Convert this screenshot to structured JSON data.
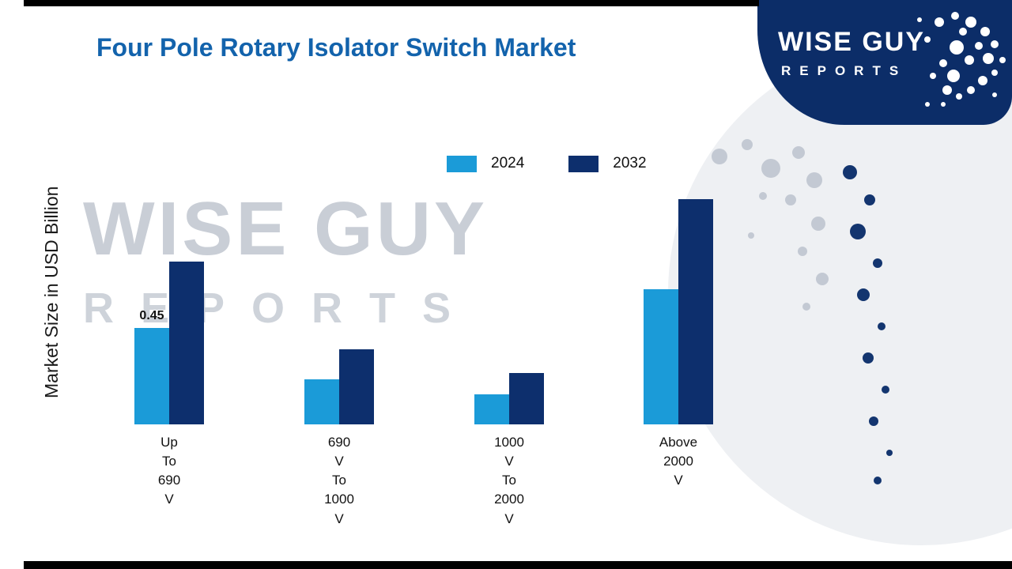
{
  "page": {
    "title": "Four Pole Rotary Isolator Switch Market"
  },
  "logo": {
    "line1": "WISE GUY",
    "line2": "REPORTS"
  },
  "watermark": {
    "line1": "WISE GUY",
    "line2": "REPORTS"
  },
  "colors": {
    "series_2024": "#1b9bd8",
    "series_2032": "#0d2f6d",
    "title_blue": "#1363ac",
    "logo_navy": "#0c2d68",
    "watermark_gray": "#c9ced6"
  },
  "chart_data": {
    "type": "bar",
    "title": "Four Pole Rotary Isolator Switch Market",
    "xlabel": "",
    "ylabel": "Market Size in USD Billion",
    "ylim": [
      0,
      1.2
    ],
    "grid": false,
    "legend_position": "top",
    "categories": [
      "Up To 690 V",
      "690 V To 1000 V",
      "1000 V To 2000 V",
      "Above 2000 V"
    ],
    "category_label_lines": [
      "Up\nTo\n690\nV",
      "690\nV\nTo\n1000\nV",
      "1000\nV\nTo\n2000\nV",
      "Above\n2000\nV"
    ],
    "series": [
      {
        "name": "2024",
        "color": "#1b9bd8",
        "values": [
          0.45,
          0.21,
          0.14,
          0.63
        ],
        "value_labels": [
          "0.45",
          "",
          "",
          ""
        ]
      },
      {
        "name": "2032",
        "color": "#0d2f6d",
        "values": [
          0.76,
          0.35,
          0.24,
          1.05
        ],
        "value_labels": [
          "",
          "",
          "",
          ""
        ]
      }
    ]
  }
}
